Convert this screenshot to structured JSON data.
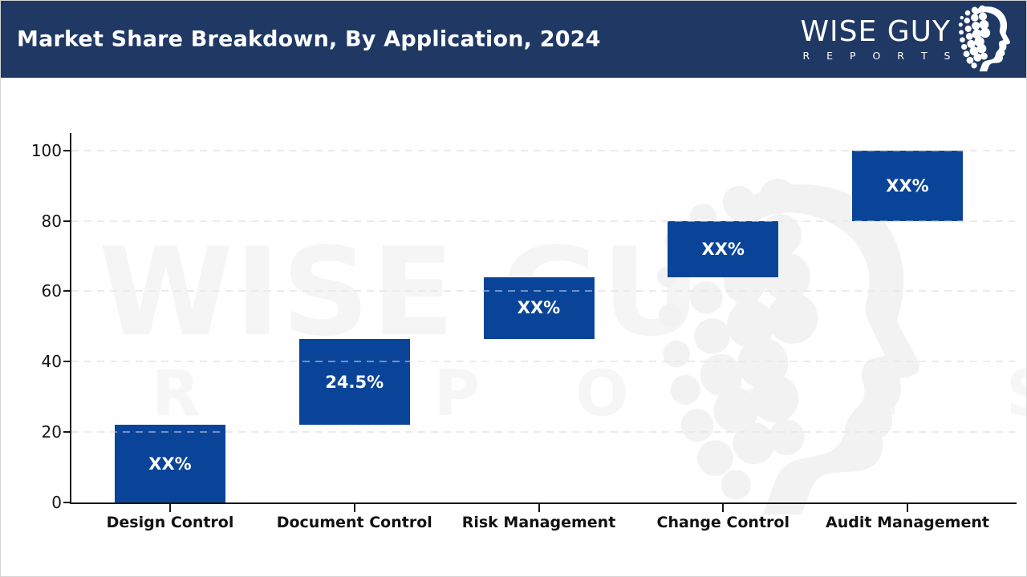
{
  "header": {
    "title": "Market Share Breakdown, By Application, 2024",
    "bg_color": "#1f3864",
    "logo": {
      "name": "WISE GUY",
      "subname": "R E P O R T S",
      "head_icon": "wiseguy-head-icon"
    }
  },
  "watermark": {
    "line1": "WISE GUY",
    "line2": "R E P O R T S"
  },
  "chart_data": {
    "type": "bar",
    "subtype": "floating-waterfall",
    "title": "Market Share Breakdown, By Application, 2024",
    "categories": [
      "Design Control",
      "Document Control",
      "Risk Management",
      "Change Control",
      "Audit Management"
    ],
    "segments": [
      {
        "category": "Design Control",
        "start": 0,
        "end": 22,
        "label": "XX%"
      },
      {
        "category": "Document Control",
        "start": 22,
        "end": 46.5,
        "label": "24.5%"
      },
      {
        "category": "Risk Management",
        "start": 46.5,
        "end": 64,
        "label": "XX%"
      },
      {
        "category": "Change Control",
        "start": 64,
        "end": 80,
        "label": "XX%"
      },
      {
        "category": "Audit Management",
        "start": 80,
        "end": 100,
        "label": "XX%"
      }
    ],
    "y_ticks": [
      0,
      20,
      40,
      60,
      80,
      100
    ],
    "ylim": [
      0,
      105
    ],
    "xlabel": "",
    "ylabel": "",
    "grid": "horizontal-dashed",
    "legend": "none",
    "bar_color": "#0a4499",
    "bar_label_color": "#ffffff",
    "axis_color": "#161616"
  }
}
